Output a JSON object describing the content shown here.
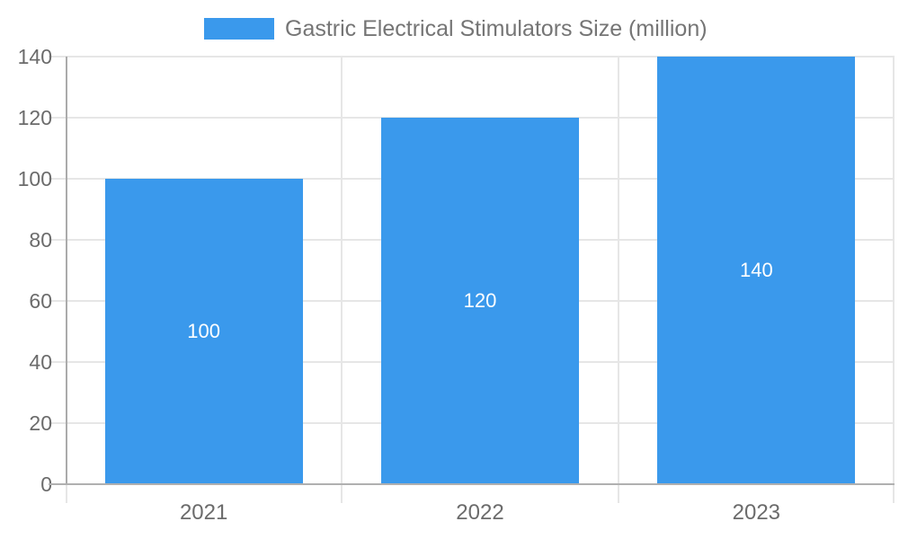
{
  "legend": {
    "label": "Gastric Electrical Stimulators Size (million)"
  },
  "chart_data": {
    "type": "bar",
    "title": "Gastric Electrical Stimulators Size (million)",
    "series_name": "Gastric Electrical Stimulators Size (million)",
    "categories": [
      "2021",
      "2022",
      "2023"
    ],
    "values": [
      100,
      120,
      140
    ],
    "bar_labels": [
      "100",
      "120",
      "140"
    ],
    "xlabel": "",
    "ylabel": "",
    "ylim": [
      0,
      140
    ],
    "y_ticks": [
      0,
      20,
      40,
      60,
      80,
      100,
      120,
      140
    ],
    "grid": true,
    "legend_position": "top",
    "colors": {
      "bar": "#3a99ec",
      "grid": "#e6e6e6",
      "axis_x": "#b0b0b0",
      "axis_y": "#ababab",
      "tick_label": "#6b6b6b",
      "title": "#757575",
      "bar_label": "#ffffff",
      "background": "#ffffff"
    }
  }
}
